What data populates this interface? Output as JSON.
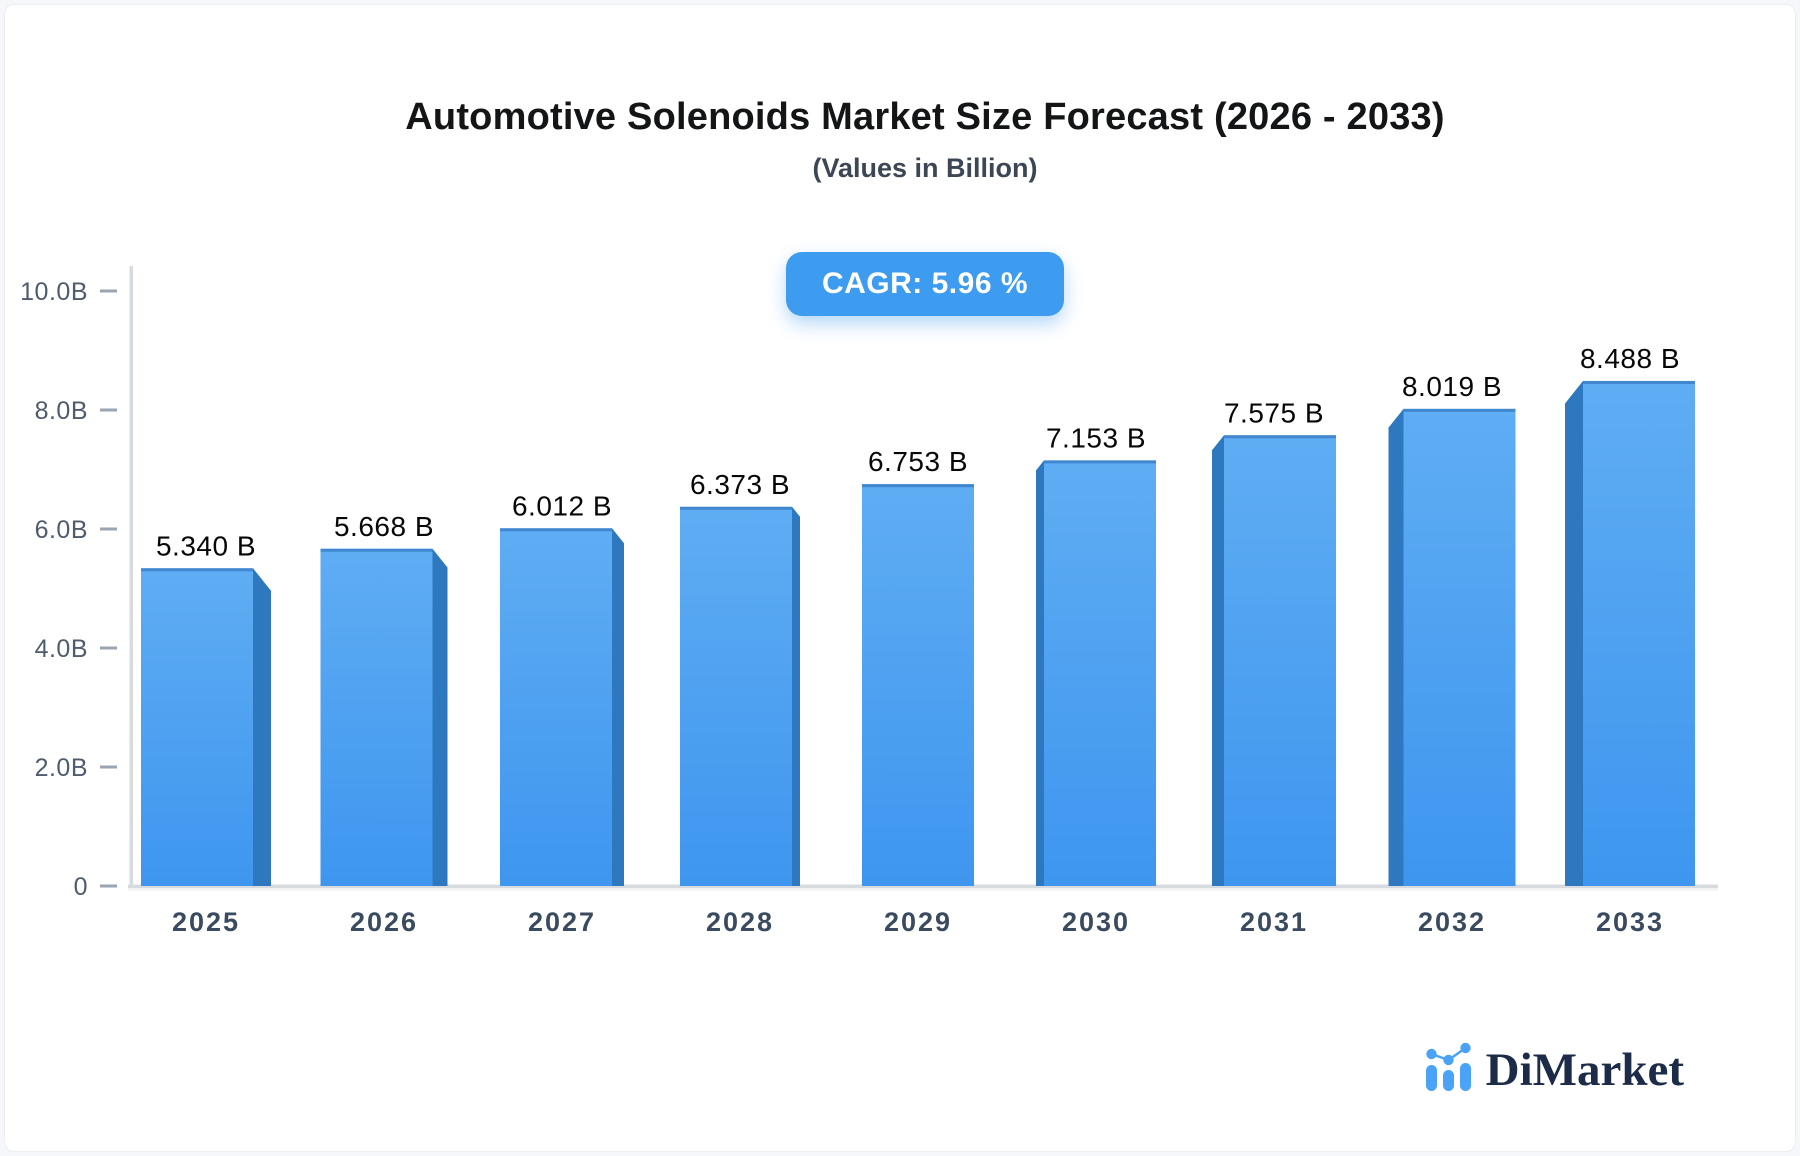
{
  "header": {
    "title": "Automotive Solenoids Market Size Forecast (2026 - 2033)",
    "subtitle": "(Values in Billion)",
    "badge": "CAGR: 5.96 %"
  },
  "chart_data": {
    "type": "bar",
    "title": "Automotive Solenoids Market Size Forecast (2026 - 2033)",
    "subtitle": "(Values in Billion)",
    "badge": "CAGR: 5.96 %",
    "categories": [
      "2025",
      "2026",
      "2027",
      "2028",
      "2029",
      "2030",
      "2031",
      "2032",
      "2033"
    ],
    "values": [
      5.34,
      5.668,
      6.012,
      6.373,
      6.753,
      7.153,
      7.575,
      8.019,
      8.488
    ],
    "value_labels": [
      "5.340 B",
      "5.668 B",
      "6.012 B",
      "6.373 B",
      "6.753 B",
      "7.153 B",
      "7.575 B",
      "8.019 B",
      "8.488 B"
    ],
    "xlabel": "",
    "ylabel": "",
    "ylim": [
      0,
      10
    ],
    "grid": false,
    "legend": false,
    "y_ticks": [
      {
        "label": "10.0B",
        "value": 10
      },
      {
        "label": "8.0B",
        "value": 8
      },
      {
        "label": "6.0B",
        "value": 6
      },
      {
        "label": "4.0B",
        "value": 4
      },
      {
        "label": "2.0B",
        "value": 2
      },
      {
        "label": "0",
        "value": 0
      }
    ]
  },
  "branding": {
    "logo_text": "DiMarket",
    "logo_icon": "bar-chart-trend-icon"
  },
  "colors": {
    "accent_blue": "#3d9bf0",
    "bar_face_top": "#5fadf3",
    "bar_face_bottom": "#3e96ef",
    "bar_side": "#2e78bf",
    "bar_top_edge": "#4187cf",
    "axis_line": "#d7dbe0",
    "tick_dash": "#9aa5b1",
    "tick_text": "#4e5c6d",
    "category_text": "#3a4a5f",
    "value_text": "#070707",
    "logo_navy": "#1c2b47",
    "logo_blue": "#4aa3f6"
  }
}
